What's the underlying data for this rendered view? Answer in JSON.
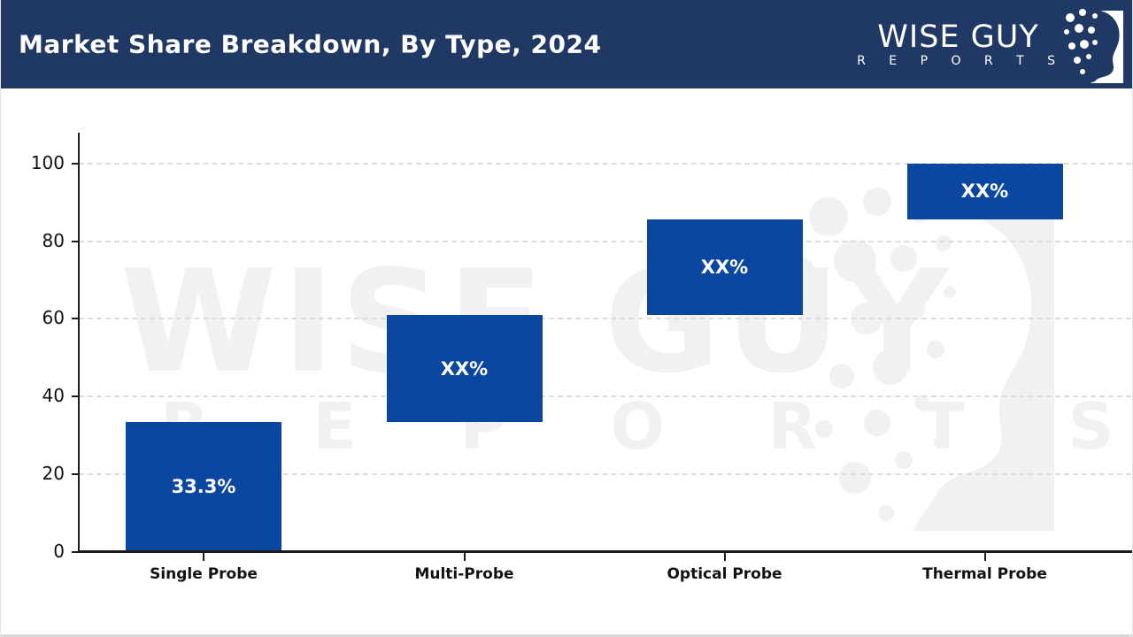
{
  "header": {
    "title": "Market Share Breakdown, By Type, 2024",
    "bg_color": "#1F3864",
    "logo": {
      "line1": "WISE GUY",
      "line2": "R E P O R T S"
    }
  },
  "watermark": {
    "line1": "WISE GUY",
    "line2": "R E P O R T S"
  },
  "chart_data": {
    "type": "bar",
    "subtype": "floating-waterfall",
    "title": "Market Share Breakdown, By Type, 2024",
    "categories": [
      "Single Probe",
      "Multi-Probe",
      "Optical Probe",
      "Thermal Probe"
    ],
    "series": [
      {
        "name": "Market Share",
        "segments": [
          {
            "category": "Single Probe",
            "start": 0,
            "end": 33.3,
            "label": "33.3%"
          },
          {
            "category": "Multi-Probe",
            "start": 33.3,
            "end": 61.0,
            "label": "XX%"
          },
          {
            "category": "Optical Probe",
            "start": 61.0,
            "end": 85.7,
            "label": "XX%"
          },
          {
            "category": "Thermal Probe",
            "start": 85.7,
            "end": 100,
            "label": "XX%"
          }
        ]
      }
    ],
    "bar_labels": [
      "33.3%",
      "XX%",
      "XX%",
      "XX%"
    ],
    "yticks": [
      0,
      20,
      40,
      60,
      80,
      100
    ],
    "ylim": [
      0,
      105
    ],
    "xlabel": "",
    "ylabel": "",
    "bar_color": "#0B47A1",
    "bar_label_color": "#ffffff",
    "grid": "horizontal-dashed",
    "grid_color": "#dcdcdc",
    "legend": "none"
  }
}
